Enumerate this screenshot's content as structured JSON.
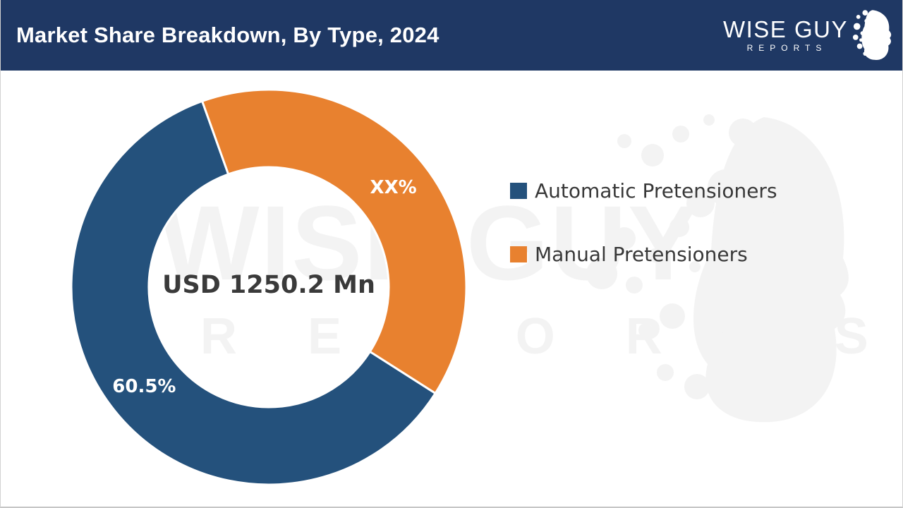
{
  "header": {
    "title": "Market Share Breakdown, By Type, 2024",
    "bg_color": "#1f3864",
    "logo": {
      "brand": "WISE GUY",
      "sub": "REPORTS"
    }
  },
  "chart_data": {
    "type": "pie",
    "subtype": "donut",
    "title": "Market Share Breakdown, By Type, 2024",
    "center_label": "USD 1250.2 Mn",
    "legend_position": "right",
    "start_angle_deg": -32.5,
    "direction": "clockwise",
    "inner_radius_ratio": 0.607,
    "series": [
      {
        "name": "Automatic Pretensioners",
        "value": 60.5,
        "data_label": "60.5%",
        "color": "#24517c"
      },
      {
        "name": "Manual Pretensioners",
        "value": 39.5,
        "data_label": "XX%",
        "color": "#e8812f"
      }
    ]
  },
  "watermark": {
    "line1": "WISE GUY",
    "line2": "R E P O R T S"
  },
  "colors": {
    "header_bg": "#1f3864",
    "center_label_color": "#3a3a3a",
    "legend_text": "#383838",
    "watermark": "#f3f3f3",
    "border": "#c9c9c9"
  }
}
